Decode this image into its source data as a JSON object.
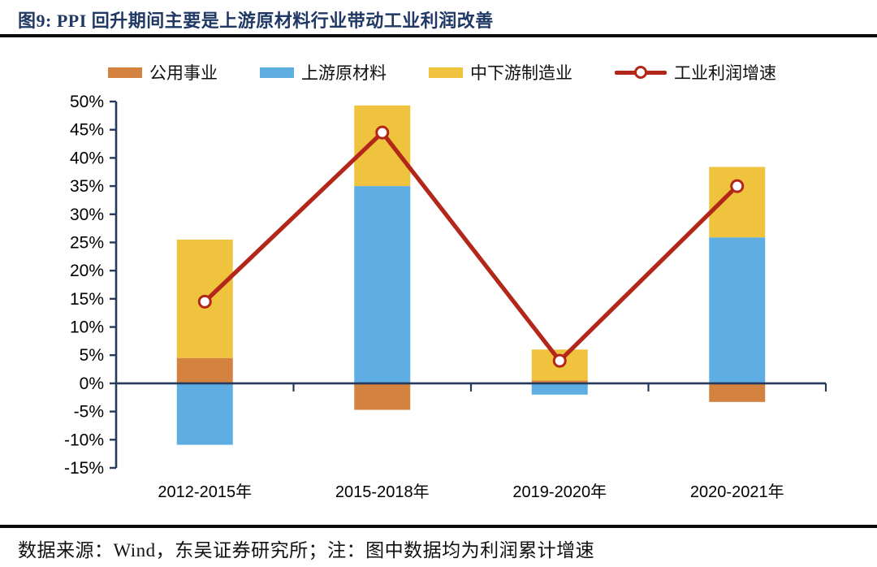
{
  "header": {
    "title": "图9:  PPI 回升期间主要是上游原材料行业带动工业利润改善"
  },
  "footer": {
    "source_note": "数据来源：Wind，东吴证券研究所；注：图中数据均为利润累计增速"
  },
  "colors": {
    "title_navy": "#1F3864",
    "axis_navy": "#263A5E",
    "divider_black": "#0A0A0A",
    "bar_orange": "#D4823F",
    "bar_blue": "#5FAEE3",
    "bar_yellow": "#EFC33D",
    "line_red": "#B3271A",
    "marker_fill": "#FFFFFF",
    "tick_text": "#000000"
  },
  "chart_data": {
    "type": "bar",
    "stacked": true,
    "title": "图9: PPI回升期间主要是上游原材料行业带动工业利润改善",
    "categories": [
      "2012-2015年",
      "2015-2018年",
      "2019-2020年",
      "2020-2021年"
    ],
    "series": [
      {
        "name": "公用事业",
        "color": "#D4823F",
        "values": [
          4.5,
          -4.7,
          0.5,
          -3.3
        ]
      },
      {
        "name": "上游原材料",
        "color": "#5FAEE3",
        "values": [
          -10.9,
          35.0,
          -2.0,
          25.9
        ]
      },
      {
        "name": "中下游制造业",
        "color": "#EFC33D",
        "values": [
          21.0,
          14.3,
          5.5,
          12.5
        ]
      }
    ],
    "line_series": {
      "name": "工业利润增速",
      "color": "#B3271A",
      "values": [
        14.5,
        44.5,
        4.0,
        35.0
      ]
    },
    "xlabel": "",
    "ylabel": "",
    "ylim": [
      -15,
      50
    ],
    "ytick_step": 5,
    "ytick_format": "percent",
    "legend_position": "top",
    "grid": false
  }
}
